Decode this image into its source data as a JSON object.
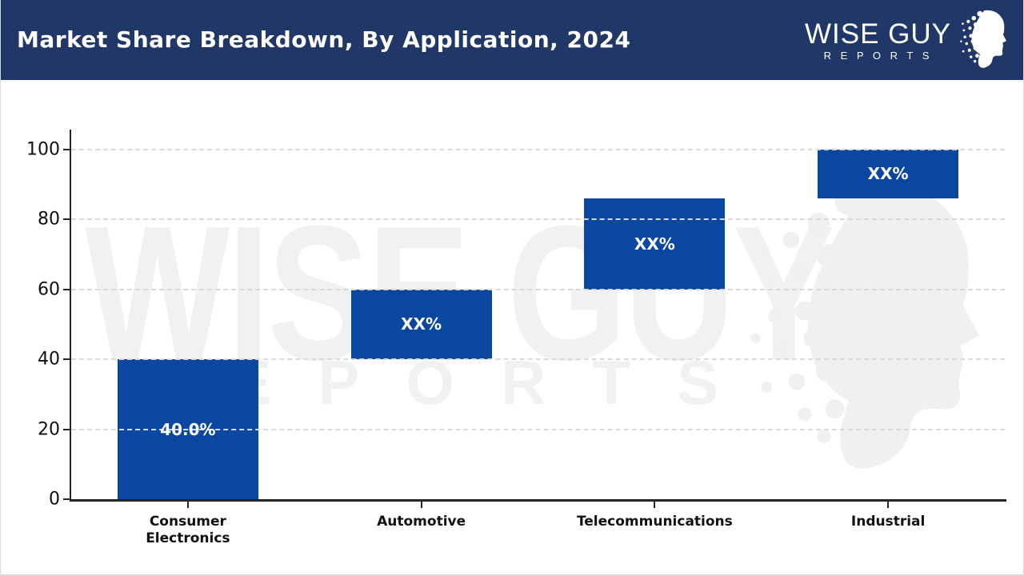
{
  "header": {
    "title": "Market Share Breakdown, By Application, 2024",
    "logo": {
      "name": "WISE GUY",
      "subtitle": "R E P O R T S"
    }
  },
  "watermark": {
    "line1": "WISE GUY",
    "line2": "REPORTS"
  },
  "colors": {
    "header_bg": "#203768",
    "bar": "#0a47a0",
    "bar_label": "#ffffff",
    "gridline": "#d9d9d9",
    "axis": "#262626",
    "tick_label": "#111111",
    "watermark": "#f1f1f3"
  },
  "chart_data": {
    "type": "bar",
    "subtype": "floating-waterfall",
    "title": "Market Share Breakdown, By Application, 2024",
    "categories": [
      "Consumer Electronics",
      "Automotive",
      "Telecommunications",
      "Industrial"
    ],
    "categories_display": [
      "Consumer\nElectronics",
      "Automotive",
      "Telecommunications",
      "Industrial"
    ],
    "series": [
      {
        "name": "Market share (%)",
        "segments": [
          {
            "category": "Consumer Electronics",
            "start": 0,
            "end": 40,
            "value": 40.0,
            "label": "40.0%"
          },
          {
            "category": "Automotive",
            "start": 40,
            "end": 60,
            "value": 20,
            "label": "XX%"
          },
          {
            "category": "Telecommunications",
            "start": 60,
            "end": 86,
            "value": 26,
            "label": "XX%"
          },
          {
            "category": "Industrial",
            "start": 86,
            "end": 100,
            "value": 14,
            "label": "XX%"
          }
        ]
      }
    ],
    "ylim": [
      0,
      100
    ],
    "yticks": [
      0,
      20,
      40,
      60,
      80,
      100
    ],
    "grid": "horizontal-dashed",
    "legend": "none"
  }
}
